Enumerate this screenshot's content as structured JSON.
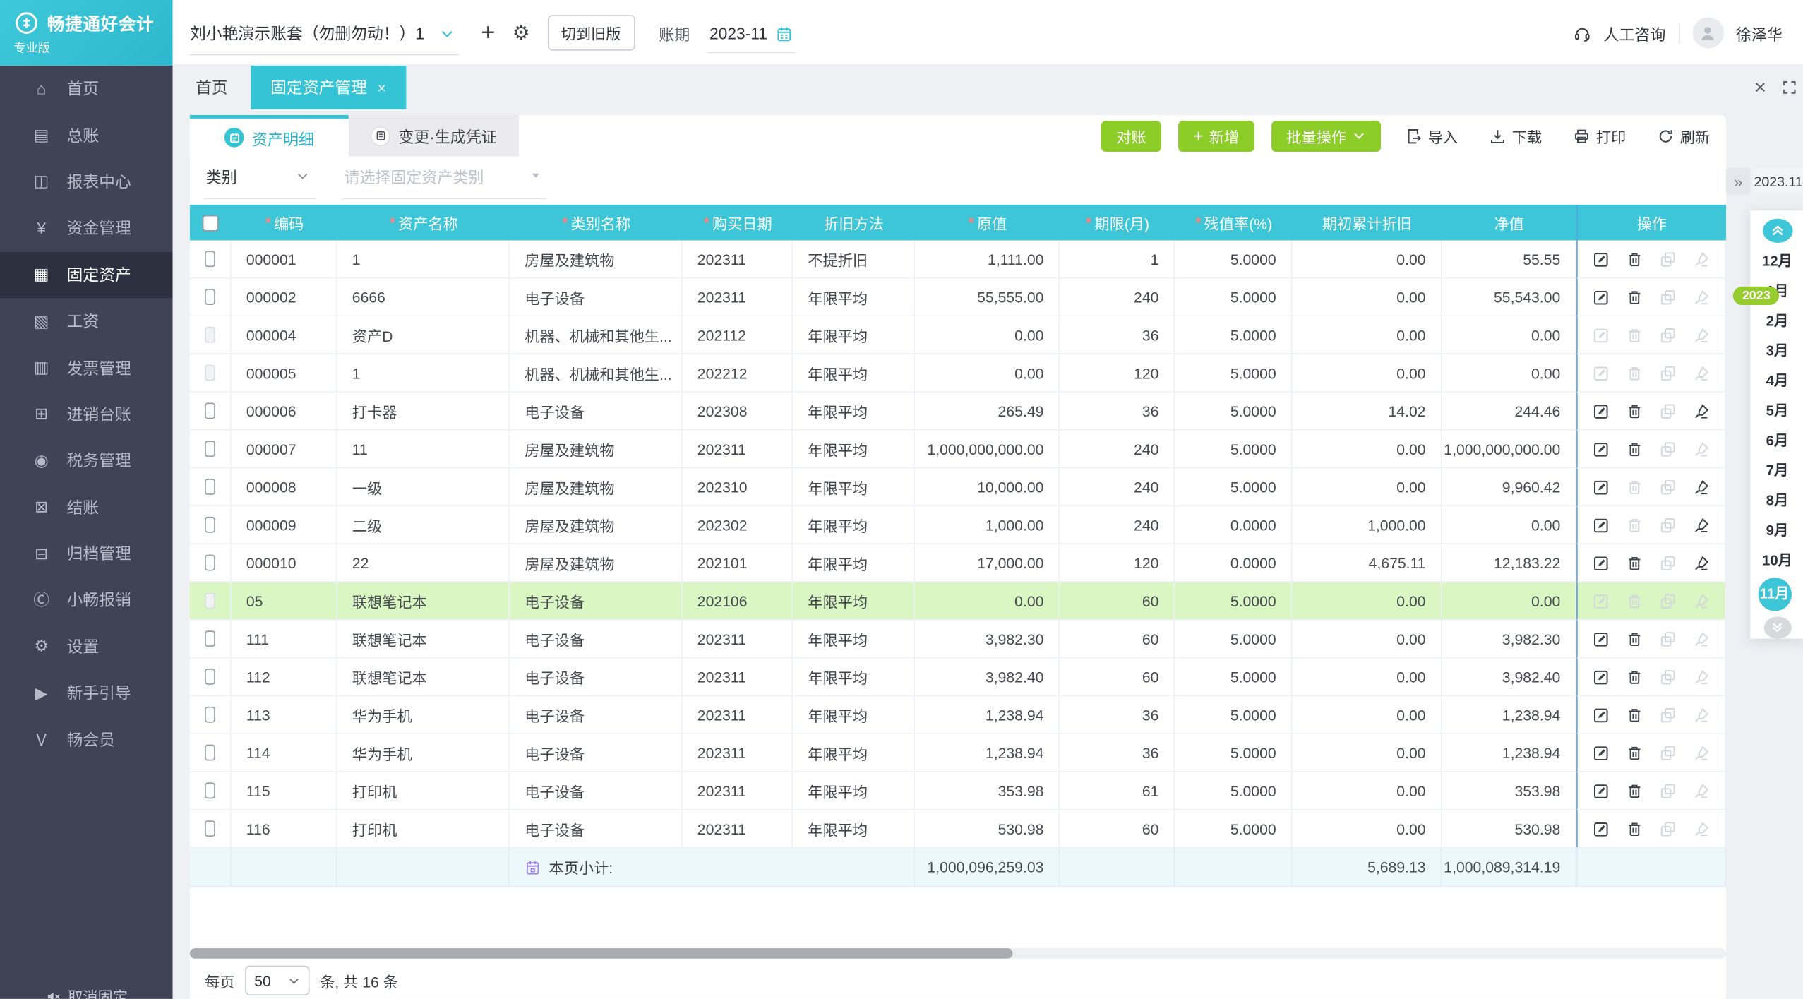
{
  "colors": {
    "brand_cyan": "#35c3d6",
    "table_header_cyan": "#3dc6d8",
    "button_green": "#8ccd28",
    "sidebar_bg": "#3e4356",
    "sidebar_active_bg": "#2c303f",
    "row_highlight_green": "#d9f6c3",
    "summary_row_blue": "#edf8fc",
    "required_asterisk_red": "#ff8080",
    "fixed_column_border_blue": "#5ba0e0",
    "year_badge_green": "#96cc2e"
  },
  "brand": {
    "name": "畅捷通好会计",
    "edition": "专业版"
  },
  "topbar": {
    "account_name": "刘小艳演示账套（勿删勿动！）1",
    "switch_old_label": "切到旧版",
    "period_label": "账期",
    "period_value": "2023-11",
    "support_label": "人工咨询",
    "username": "徐泽华"
  },
  "window_tabs": {
    "home": "首页",
    "active_tab": "固定资产管理",
    "close_glyph": "×"
  },
  "sidebar": {
    "items": [
      {
        "name": "home",
        "glyph": "⌂",
        "label": "首页",
        "active": false
      },
      {
        "name": "general-ledger",
        "glyph": "▤",
        "label": "总账",
        "active": false
      },
      {
        "name": "report-center",
        "glyph": "◫",
        "label": "报表中心",
        "active": false
      },
      {
        "name": "funds-management",
        "glyph": "¥",
        "label": "资金管理",
        "active": false
      },
      {
        "name": "fixed-assets",
        "glyph": "▦",
        "label": "固定资产",
        "active": true
      },
      {
        "name": "payroll",
        "glyph": "▧",
        "label": "工资",
        "active": false
      },
      {
        "name": "invoice-management",
        "glyph": "▥",
        "label": "发票管理",
        "active": false
      },
      {
        "name": "purchase-sales-ledger",
        "glyph": "⊞",
        "label": "进销台账",
        "active": false
      },
      {
        "name": "tax-management",
        "glyph": "◉",
        "label": "税务管理",
        "active": false
      },
      {
        "name": "closing",
        "glyph": "⊠",
        "label": "结账",
        "active": false
      },
      {
        "name": "archive-management",
        "glyph": "⊟",
        "label": "归档管理",
        "active": false
      },
      {
        "name": "xiaochang-reimburse",
        "glyph": "Ⓒ",
        "label": "小畅报销",
        "active": false
      },
      {
        "name": "settings",
        "glyph": "⚙",
        "label": "设置",
        "active": false
      },
      {
        "name": "beginner-guide",
        "glyph": "▶",
        "label": "新手引导",
        "active": false
      },
      {
        "name": "chang-member",
        "glyph": "Ｖ",
        "label": "畅会员",
        "active": false
      }
    ],
    "pinned_footer": "取消固定"
  },
  "subtabs": [
    {
      "label": "资产明细",
      "active": true
    },
    {
      "label": "变更·生成凭证",
      "active": false
    }
  ],
  "toolbar": {
    "primary_buttons": [
      {
        "name": "reconcile",
        "label": "对账",
        "plus": false,
        "dropdown": false
      },
      {
        "name": "add",
        "label": "新增",
        "plus": true,
        "dropdown": false
      },
      {
        "name": "batch-operations",
        "label": "批量操作",
        "plus": false,
        "dropdown": true
      }
    ],
    "link_buttons": [
      {
        "name": "import",
        "label": "导入"
      },
      {
        "name": "download",
        "label": "下载"
      },
      {
        "name": "print",
        "label": "打印"
      },
      {
        "name": "refresh",
        "label": "刷新"
      }
    ]
  },
  "filter": {
    "label": "类别",
    "placeholder": "请选择固定资产类别"
  },
  "table": {
    "columns": [
      {
        "label": "编码",
        "required": true,
        "align": "left"
      },
      {
        "label": "资产名称",
        "required": true,
        "align": "left"
      },
      {
        "label": "类别名称",
        "required": true,
        "align": "left"
      },
      {
        "label": "购买日期",
        "required": true,
        "align": "left"
      },
      {
        "label": "折旧方法",
        "required": false,
        "align": "left"
      },
      {
        "label": "原值",
        "required": true,
        "align": "right"
      },
      {
        "label": "期限(月)",
        "required": true,
        "align": "right"
      },
      {
        "label": "残值率(%)",
        "required": true,
        "align": "right"
      },
      {
        "label": "期初累计折旧",
        "required": false,
        "align": "right"
      },
      {
        "label": "净值",
        "required": false,
        "align": "right"
      },
      {
        "label": "操作",
        "required": false,
        "align": "center"
      }
    ],
    "action_icons": [
      "edit",
      "delete",
      "copy",
      "clean"
    ],
    "rows": [
      {
        "code": "000001",
        "name": "1",
        "category": "房屋及建筑物",
        "date": "202311",
        "method": "不提折旧",
        "orig": "1,111.00",
        "months": "1",
        "rate": "5.0000",
        "accum": "0.00",
        "net": "55.55",
        "disabled": false,
        "highlight": false,
        "actions": [
          true,
          true,
          false,
          false
        ]
      },
      {
        "code": "000002",
        "name": "6666",
        "category": "电子设备",
        "date": "202311",
        "method": "年限平均",
        "orig": "55,555.00",
        "months": "240",
        "rate": "5.0000",
        "accum": "0.00",
        "net": "55,543.00",
        "disabled": false,
        "highlight": false,
        "actions": [
          true,
          true,
          false,
          false
        ]
      },
      {
        "code": "000004",
        "name": "资产D",
        "category": "机器、机械和其他生...",
        "date": "202112",
        "method": "年限平均",
        "orig": "0.00",
        "months": "36",
        "rate": "5.0000",
        "accum": "0.00",
        "net": "0.00",
        "disabled": true,
        "highlight": false,
        "actions": [
          false,
          false,
          false,
          false
        ]
      },
      {
        "code": "000005",
        "name": "1",
        "category": "机器、机械和其他生...",
        "date": "202212",
        "method": "年限平均",
        "orig": "0.00",
        "months": "120",
        "rate": "5.0000",
        "accum": "0.00",
        "net": "0.00",
        "disabled": true,
        "highlight": false,
        "actions": [
          false,
          false,
          false,
          false
        ]
      },
      {
        "code": "000006",
        "name": "打卡器",
        "category": "电子设备",
        "date": "202308",
        "method": "年限平均",
        "orig": "265.49",
        "months": "36",
        "rate": "5.0000",
        "accum": "14.02",
        "net": "244.46",
        "disabled": false,
        "highlight": false,
        "actions": [
          true,
          true,
          false,
          true
        ]
      },
      {
        "code": "000007",
        "name": "11",
        "category": "房屋及建筑物",
        "date": "202311",
        "method": "年限平均",
        "orig": "1,000,000,000.00",
        "months": "240",
        "rate": "5.0000",
        "accum": "0.00",
        "net": "1,000,000,000.00",
        "disabled": false,
        "highlight": false,
        "actions": [
          true,
          true,
          false,
          false
        ]
      },
      {
        "code": "000008",
        "name": "一级",
        "category": "房屋及建筑物",
        "date": "202310",
        "method": "年限平均",
        "orig": "10,000.00",
        "months": "240",
        "rate": "5.0000",
        "accum": "0.00",
        "net": "9,960.42",
        "disabled": false,
        "highlight": false,
        "actions": [
          true,
          false,
          false,
          true
        ]
      },
      {
        "code": "000009",
        "name": "二级",
        "category": "房屋及建筑物",
        "date": "202302",
        "method": "年限平均",
        "orig": "1,000.00",
        "months": "240",
        "rate": "0.0000",
        "accum": "1,000.00",
        "net": "0.00",
        "disabled": false,
        "highlight": false,
        "actions": [
          true,
          false,
          false,
          true
        ]
      },
      {
        "code": "000010",
        "name": "22",
        "category": "房屋及建筑物",
        "date": "202101",
        "method": "年限平均",
        "orig": "17,000.00",
        "months": "120",
        "rate": "0.0000",
        "accum": "4,675.11",
        "net": "12,183.22",
        "disabled": false,
        "highlight": false,
        "actions": [
          true,
          true,
          false,
          true
        ]
      },
      {
        "code": "05",
        "name": "联想笔记本",
        "category": "电子设备",
        "date": "202106",
        "method": "年限平均",
        "orig": "0.00",
        "months": "60",
        "rate": "5.0000",
        "accum": "0.00",
        "net": "0.00",
        "disabled": true,
        "highlight": true,
        "actions": [
          false,
          false,
          false,
          false
        ]
      },
      {
        "code": "111",
        "name": "联想笔记本",
        "category": "电子设备",
        "date": "202311",
        "method": "年限平均",
        "orig": "3,982.30",
        "months": "60",
        "rate": "5.0000",
        "accum": "0.00",
        "net": "3,982.30",
        "disabled": false,
        "highlight": false,
        "actions": [
          true,
          true,
          false,
          false
        ]
      },
      {
        "code": "112",
        "name": "联想笔记本",
        "category": "电子设备",
        "date": "202311",
        "method": "年限平均",
        "orig": "3,982.40",
        "months": "60",
        "rate": "5.0000",
        "accum": "0.00",
        "net": "3,982.40",
        "disabled": false,
        "highlight": false,
        "actions": [
          true,
          true,
          false,
          false
        ]
      },
      {
        "code": "113",
        "name": "华为手机",
        "category": "电子设备",
        "date": "202311",
        "method": "年限平均",
        "orig": "1,238.94",
        "months": "36",
        "rate": "5.0000",
        "accum": "0.00",
        "net": "1,238.94",
        "disabled": false,
        "highlight": false,
        "actions": [
          true,
          true,
          false,
          false
        ]
      },
      {
        "code": "114",
        "name": "华为手机",
        "category": "电子设备",
        "date": "202311",
        "method": "年限平均",
        "orig": "1,238.94",
        "months": "36",
        "rate": "5.0000",
        "accum": "0.00",
        "net": "1,238.94",
        "disabled": false,
        "highlight": false,
        "actions": [
          true,
          true,
          false,
          false
        ]
      },
      {
        "code": "115",
        "name": "打印机",
        "category": "电子设备",
        "date": "202311",
        "method": "年限平均",
        "orig": "353.98",
        "months": "61",
        "rate": "5.0000",
        "accum": "0.00",
        "net": "353.98",
        "disabled": false,
        "highlight": false,
        "actions": [
          true,
          true,
          false,
          false
        ]
      },
      {
        "code": "116",
        "name": "打印机",
        "category": "电子设备",
        "date": "202311",
        "method": "年限平均",
        "orig": "530.98",
        "months": "60",
        "rate": "5.0000",
        "accum": "0.00",
        "net": "530.98",
        "disabled": false,
        "highlight": false,
        "actions": [
          true,
          true,
          false,
          false
        ]
      }
    ],
    "summary": {
      "label": "本页小计:",
      "orig": "1,000,096,259.03",
      "accum": "5,689.13",
      "net": "1,000,089,314.19"
    }
  },
  "pagination": {
    "per_page_label": "每页",
    "page_size": "50",
    "count_suffix": "条, 共 16 条"
  },
  "right_panel": {
    "collapse_glyph": "»",
    "current_period": "2023.11",
    "year_badge": "2023",
    "months": [
      "12月",
      "1月",
      "2月",
      "3月",
      "4月",
      "5月",
      "6月",
      "7月",
      "8月",
      "9月",
      "10月",
      "11月"
    ],
    "active_month": "11月",
    "badge_after": "12月"
  }
}
